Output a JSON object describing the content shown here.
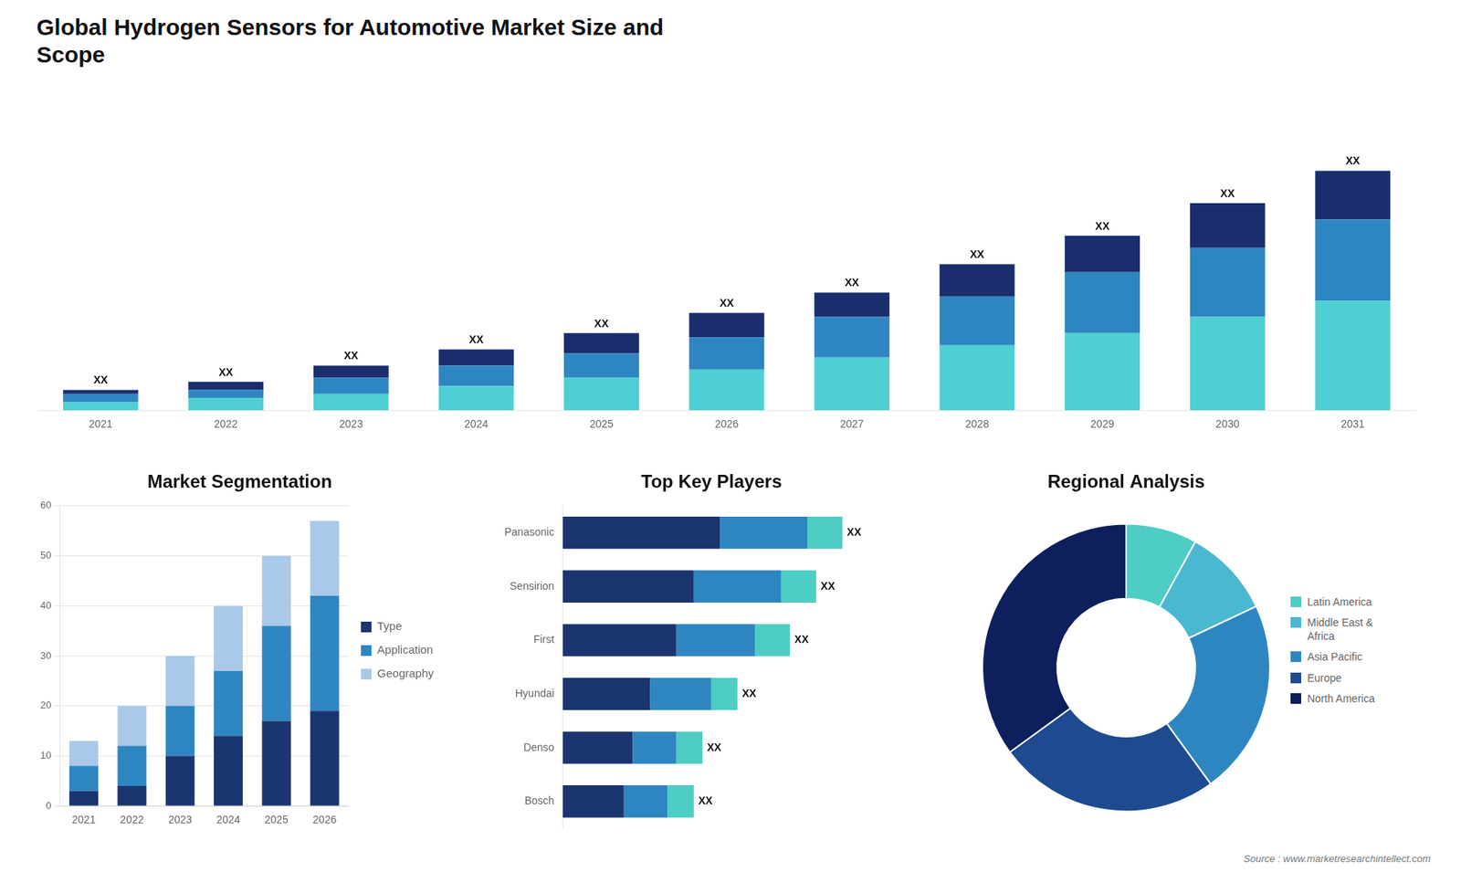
{
  "chart_data": [
    {
      "type": "bar",
      "title": "Global Hydrogen Sensors for Automotive Market Size and\nScope",
      "categories": [
        "2021",
        "2022",
        "2023",
        "2024",
        "2025",
        "2026",
        "2027",
        "2028",
        "2029",
        "2030",
        "2031"
      ],
      "series": [
        {
          "color": "#4ecfd4",
          "values": [
            2,
            3,
            4,
            6,
            8,
            10,
            13,
            16,
            19,
            23,
            27
          ]
        },
        {
          "color": "#2e86c1",
          "values": [
            2,
            2,
            4,
            5,
            6,
            8,
            10,
            12,
            15,
            17,
            20
          ]
        },
        {
          "color": "#1a2e6e",
          "values": [
            1,
            2,
            3,
            4,
            5,
            6,
            6,
            8,
            9,
            11,
            12
          ],
          "value_labels": [
            "XX",
            "XX",
            "XX",
            "XX",
            "XX",
            "XX",
            "XX",
            "XX",
            "XX",
            "XX",
            "XX"
          ]
        }
      ],
      "stacked": true,
      "ylim": [
        0,
        76.7
      ],
      "tick_labels": "x",
      "grid": false
    },
    {
      "type": "bar",
      "title": "Market Segmentation",
      "categories": [
        "2021",
        "2022",
        "2023",
        "2024",
        "2025",
        "2026"
      ],
      "series": [
        {
          "name": "Type",
          "color": "#1a3570",
          "values": [
            3,
            4,
            10,
            14,
            17,
            19
          ]
        },
        {
          "name": "Application",
          "color": "#2e86c1",
          "values": [
            5,
            8,
            10,
            13,
            19,
            23
          ]
        },
        {
          "name": "Geography",
          "color": "#aac9e8",
          "values": [
            5,
            8,
            10,
            13,
            14,
            15
          ]
        }
      ],
      "stacked": true,
      "ylim": [
        0,
        60
      ],
      "yticks": [
        0,
        10,
        20,
        30,
        40,
        50,
        60
      ],
      "grid": true,
      "legend": "right"
    },
    {
      "type": "bar",
      "title": "Top Key Players",
      "orientation": "horizontal",
      "categories": [
        "Panasonic",
        "Sensirion",
        "First",
        "Hyundai",
        "Denso",
        "Bosch"
      ],
      "series": [
        {
          "color": "#1a3570",
          "values": [
            18,
            15,
            13,
            10,
            8,
            7
          ]
        },
        {
          "color": "#2e86c1",
          "values": [
            10,
            10,
            9,
            7,
            5,
            5
          ]
        },
        {
          "color": "#4ecdc4",
          "values": [
            4,
            4,
            4,
            3,
            3,
            3
          ],
          "value_labels": [
            "XX",
            "XX",
            "XX",
            "XX",
            "XX",
            "XX"
          ]
        }
      ],
      "stacked": true,
      "xlim": [
        0,
        40.96
      ],
      "tick_labels": "y",
      "grid": false
    },
    {
      "type": "doughnut",
      "title": "Regional Analysis",
      "categories": [
        "Latin America",
        "Middle East &\nAfrica",
        "Asia Pacific",
        "Europe",
        "North America"
      ],
      "values": [
        8,
        10,
        22,
        25,
        35
      ],
      "colors": [
        "#4ecdc4",
        "#4ab8d0",
        "#2e86c1",
        "#1e4a90",
        "#0d1f5c"
      ],
      "legend": "right",
      "annotations": [
        "Source : www.marketresearchintellect.com"
      ]
    }
  ]
}
